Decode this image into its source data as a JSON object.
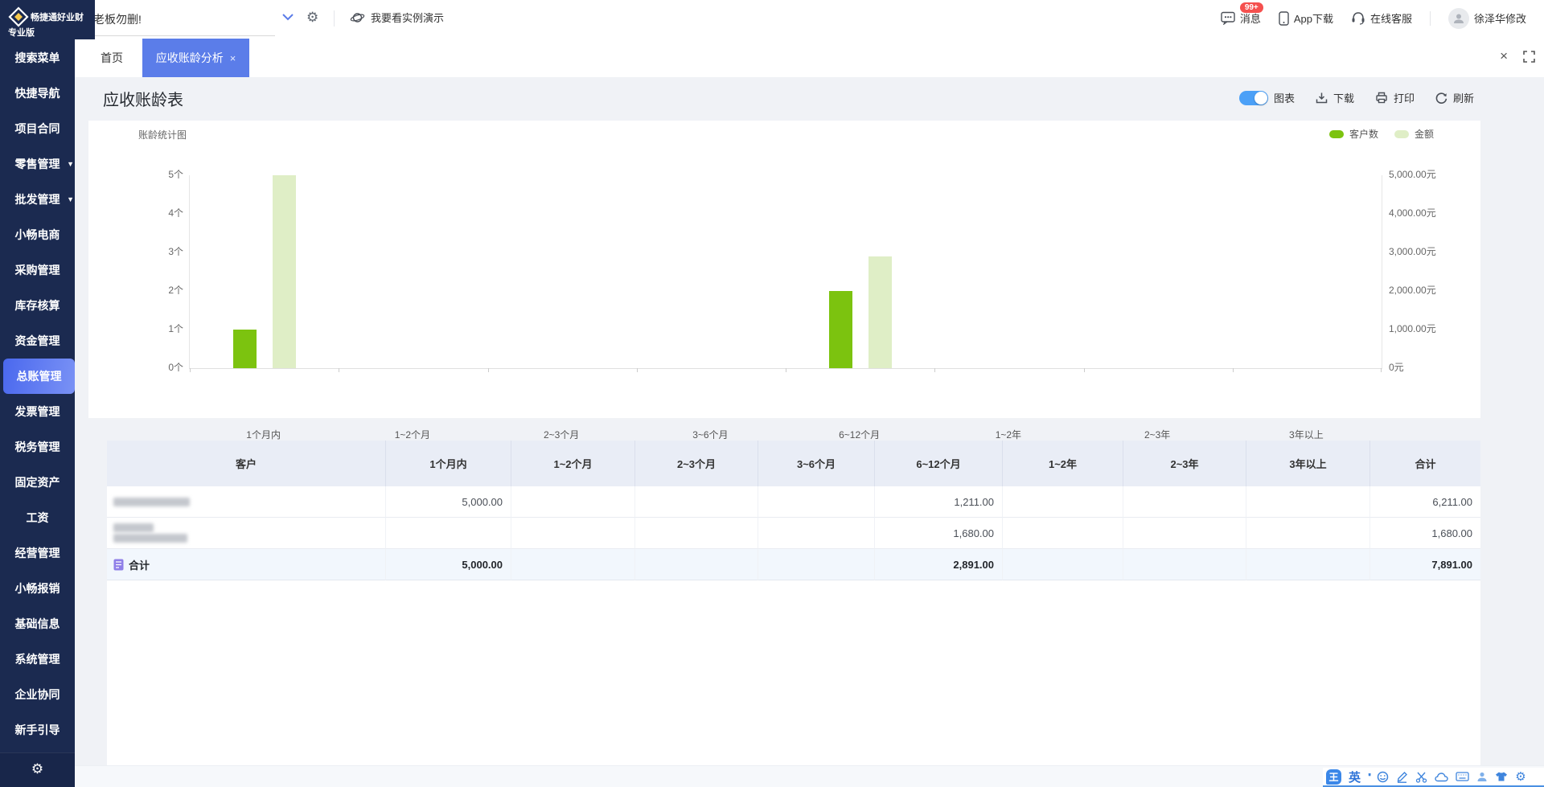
{
  "app": {
    "logo_title": "畅捷通好业财",
    "logo_subtitle": "专业版"
  },
  "sidebar": {
    "items": [
      {
        "label": "搜索菜单"
      },
      {
        "label": "快捷导航"
      },
      {
        "label": "项目合同"
      },
      {
        "label": "零售管理",
        "arrow": true
      },
      {
        "label": "批发管理",
        "arrow": true
      },
      {
        "label": "小畅电商"
      },
      {
        "label": "采购管理"
      },
      {
        "label": "库存核算"
      },
      {
        "label": "资金管理"
      },
      {
        "label": "总账管理",
        "active": true
      },
      {
        "label": "发票管理"
      },
      {
        "label": "税务管理"
      },
      {
        "label": "固定资产"
      },
      {
        "label": "工资"
      },
      {
        "label": "经营管理"
      },
      {
        "label": "小畅报销"
      },
      {
        "label": "基础信息"
      },
      {
        "label": "系统管理"
      },
      {
        "label": "企业协同"
      },
      {
        "label": "新手引导"
      }
    ]
  },
  "topbar": {
    "account_name": "徐老板勿删!",
    "demo_label": "我要看实例演示",
    "messages_label": "消息",
    "messages_badge": "99+",
    "app_download_label": "App下载",
    "support_label": "在线客服",
    "user_name": "徐泽华修改"
  },
  "tabs": [
    {
      "label": "首页",
      "active": false
    },
    {
      "label": "应收账龄分析",
      "active": true,
      "close_glyph": "×"
    }
  ],
  "window_controls": {
    "close_glyph": "×"
  },
  "page": {
    "title": "应收账龄表",
    "chart_toggle_label": "图表",
    "download_label": "下载",
    "print_label": "打印",
    "refresh_label": "刷新"
  },
  "chart_data": {
    "type": "bar",
    "title": "账龄统计图",
    "categories": [
      "1个月内",
      "1~2个月",
      "2~3个月",
      "3~6个月",
      "6~12个月",
      "1~2年",
      "2~3年",
      "3年以上"
    ],
    "series": [
      {
        "name": "客户数",
        "color": "#7cc30f",
        "axis": "left",
        "values": [
          1,
          0,
          0,
          0,
          2,
          0,
          0,
          0
        ]
      },
      {
        "name": "金额",
        "color": "#dfeec6",
        "axis": "right",
        "values": [
          5000,
          0,
          0,
          0,
          2891,
          0,
          0,
          0
        ]
      }
    ],
    "left_axis": {
      "unit": "个",
      "ticks": [
        "0个",
        "1个",
        "2个",
        "3个",
        "4个",
        "5个"
      ],
      "max": 5
    },
    "right_axis": {
      "unit": "元",
      "ticks": [
        "0元",
        "1,000.00元",
        "2,000.00元",
        "3,000.00元",
        "4,000.00元",
        "5,000.00元"
      ],
      "max": 5000
    },
    "legend_position": "top-right",
    "grid": false
  },
  "table": {
    "columns": [
      "客户",
      "1个月内",
      "1~2个月",
      "2~3个月",
      "3~6个月",
      "6~12个月",
      "1~2年",
      "2~3年",
      "3年以上",
      "合计"
    ],
    "rows": [
      {
        "customer_redacted": true,
        "blur_widths": [
          95
        ],
        "values": [
          "5,000.00",
          "",
          "",
          "",
          "1,211.00",
          "",
          "",
          "",
          "6,211.00"
        ]
      },
      {
        "customer_redacted": true,
        "blur_widths": [
          50,
          92
        ],
        "values": [
          "",
          "",
          "",
          "",
          "1,680.00",
          "",
          "",
          "",
          "1,680.00"
        ]
      }
    ],
    "total": {
      "label": "合计",
      "values": [
        "5,000.00",
        "",
        "",
        "",
        "2,891.00",
        "",
        "",
        "",
        "7,891.00"
      ]
    }
  },
  "ime": {
    "logo_char": "王",
    "lang_char": "英",
    "quote_glyph": "''",
    "icons": [
      "wangma-logo",
      "english-mode",
      "quote",
      "emoji",
      "handwriting",
      "screenshot",
      "cloud",
      "keyboard",
      "account",
      "skin",
      "settings"
    ]
  }
}
